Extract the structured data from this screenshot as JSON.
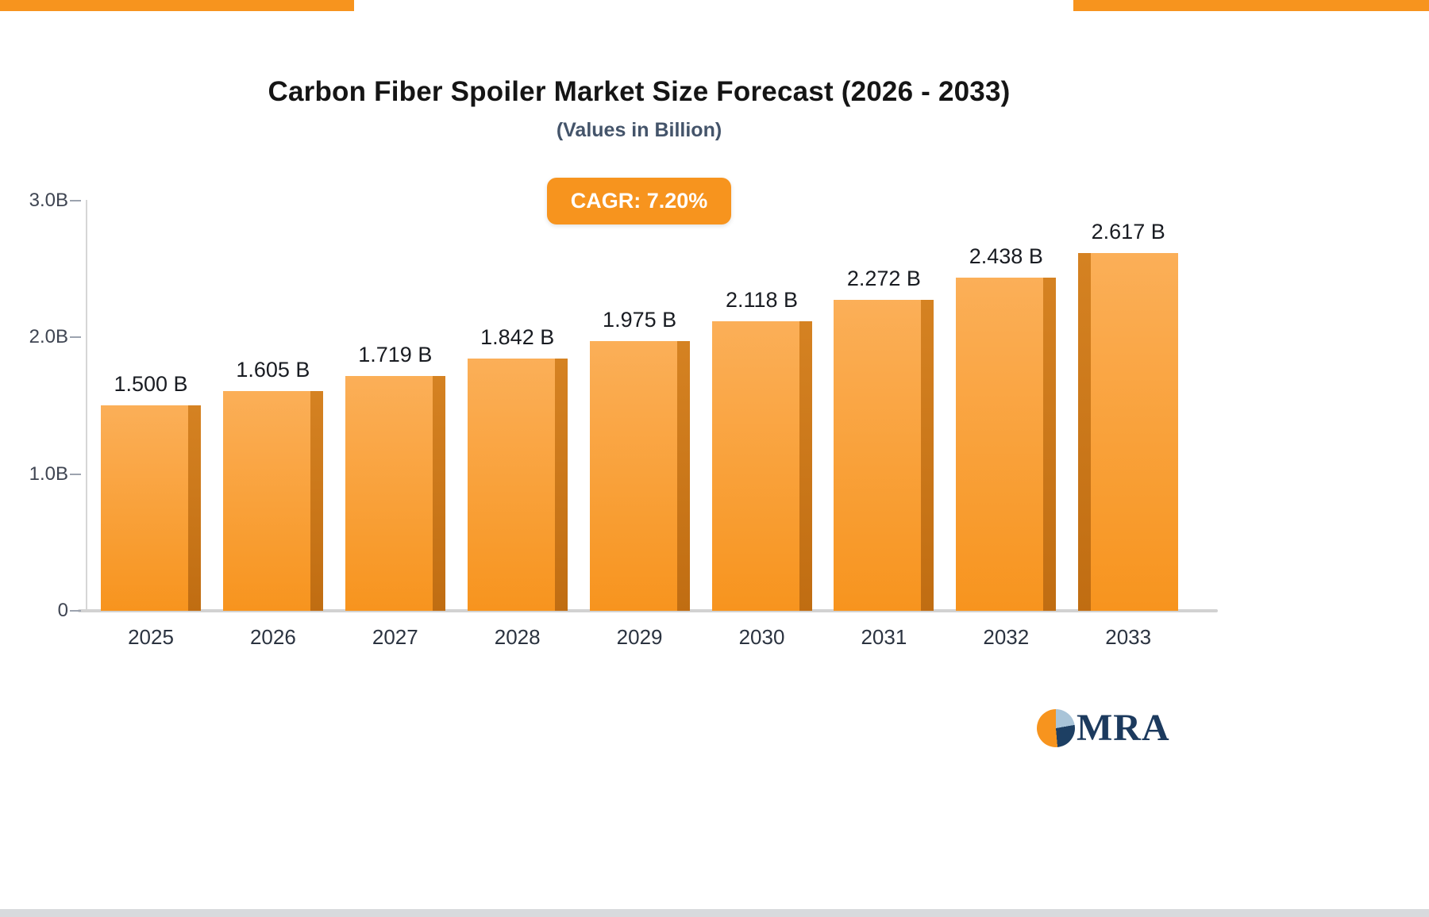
{
  "page": {
    "title": "Carbon Fiber Spoiler Market Size Forecast (2026 - 2033)",
    "subtitle": "(Values in Billion)",
    "badge": "CAGR: 7.20%",
    "logo_text": "MRA"
  },
  "colors": {
    "bar_top": "#fbaf58",
    "bar_bottom": "#f7941e",
    "bar_side": "#c06d12",
    "accent": "#f7941e",
    "badge_text": "#ffffff",
    "logo_navy": "#1c3a5e",
    "logo_light_blue": "#a9c4d8"
  },
  "chart_data": {
    "type": "bar",
    "title": "Carbon Fiber Spoiler Market Size Forecast (2026 - 2033)",
    "subtitle": "(Values in Billion)",
    "annotation": "CAGR: 7.20%",
    "categories": [
      "2025",
      "2026",
      "2027",
      "2028",
      "2029",
      "2030",
      "2031",
      "2032",
      "2033"
    ],
    "values": [
      1.5,
      1.605,
      1.719,
      1.842,
      1.975,
      2.118,
      2.272,
      2.438,
      2.617
    ],
    "value_labels": [
      "1.500 B",
      "1.605 B",
      "1.719 B",
      "1.842 B",
      "1.975 B",
      "2.118 B",
      "2.272 B",
      "2.438 B",
      "2.617 B"
    ],
    "xlabel": "",
    "ylabel": "",
    "ylim": [
      0,
      3
    ],
    "yticks": {
      "values": [
        0,
        1,
        2,
        3
      ],
      "labels": [
        "0",
        "1.0B",
        "2.0B",
        "3.0B"
      ]
    },
    "grid": false,
    "legend": false
  }
}
